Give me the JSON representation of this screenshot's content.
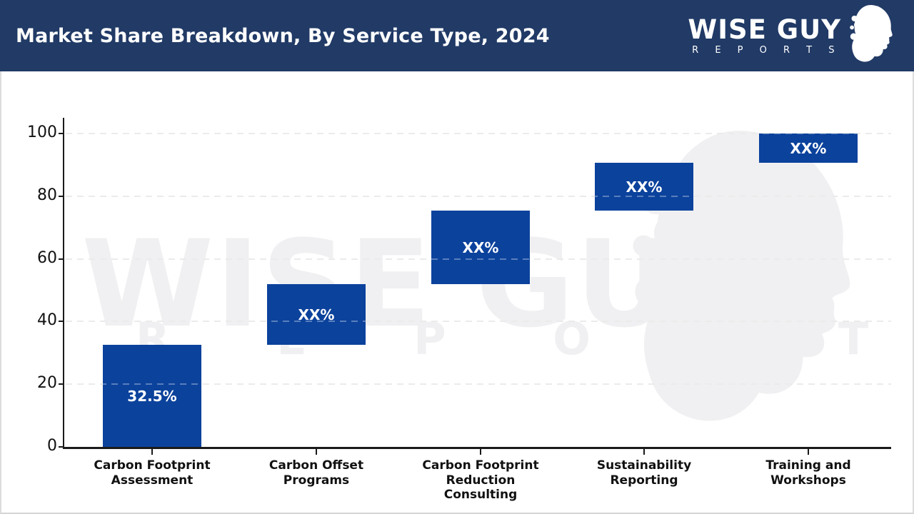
{
  "header": {
    "logo": {
      "line1": "WISE GUY",
      "line2": "R E P O R T S"
    }
  },
  "watermark": {
    "line1": "WISE GUY",
    "line2": "R E P O R T S"
  },
  "colors": {
    "header_bg": "#213A66",
    "bar": "#0B429C",
    "bar_label": "#ffffff",
    "axis": "#1a1a1a",
    "grid": "#e2e2e2",
    "tick_text": "#111111",
    "watermark": "#f0f0f2"
  },
  "chart_data": {
    "type": "bar",
    "subtype": "waterfall",
    "title": "Market Share Breakdown, By Service Type, 2024",
    "categories": [
      "Carbon Footprint Assessment",
      "Carbon Offset Programs",
      "Carbon Footprint Reduction Consulting",
      "Sustainability Reporting",
      "Training and Workshops"
    ],
    "category_lines": [
      [
        "Carbon Footprint",
        "Assessment"
      ],
      [
        "Carbon Offset",
        "Programs"
      ],
      [
        "Carbon Footprint",
        "Reduction",
        "Consulting"
      ],
      [
        "Sustainability",
        "Reporting"
      ],
      [
        "Training and",
        "Workshops"
      ]
    ],
    "segments": [
      {
        "category": "Carbon Footprint Assessment",
        "start": 0,
        "end": 32.5,
        "label": "32.5%"
      },
      {
        "category": "Carbon Offset Programs",
        "start": 32.5,
        "end": 52,
        "label": "XX%"
      },
      {
        "category": "Carbon Footprint Reduction Consulting",
        "start": 52,
        "end": 75.3,
        "label": "XX%"
      },
      {
        "category": "Sustainability Reporting",
        "start": 75.3,
        "end": 90.6,
        "label": "XX%"
      },
      {
        "category": "Training and Workshops",
        "start": 90.6,
        "end": 100,
        "label": "XX%"
      }
    ],
    "ylim": [
      0,
      105
    ],
    "yticks": [
      0,
      20,
      40,
      60,
      80,
      100
    ],
    "grid": "horizontal-dashed",
    "legend": "none"
  }
}
